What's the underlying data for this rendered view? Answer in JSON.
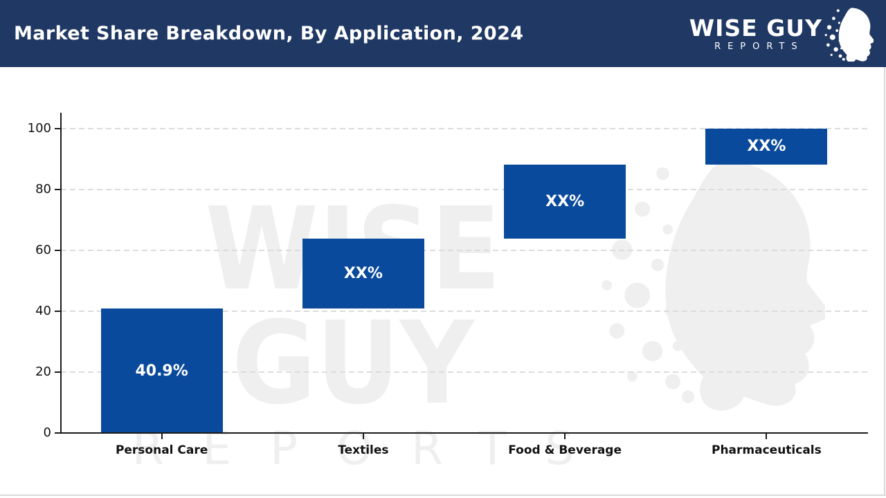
{
  "header": {
    "title": "Market Share Breakdown, By Application, 2024",
    "bg_color": "#1f3864",
    "logo": {
      "wordmark": "WISE GUY",
      "subtitle": "REPORTS"
    }
  },
  "watermark": {
    "line1": "WISE GUY",
    "line2": "REPORTS"
  },
  "chart_data": {
    "type": "bar",
    "subtype": "waterfall",
    "title": "Market Share Breakdown, By Application, 2024",
    "categories": [
      "Personal Care",
      "Textiles",
      "Food & Beverage",
      "Pharmaceuticals"
    ],
    "series": [
      {
        "name": "Market share (%)",
        "segments": [
          {
            "category": "Personal Care",
            "start": 0,
            "end": 40.9,
            "label": "40.9%"
          },
          {
            "category": "Textiles",
            "start": 40.9,
            "end": 63.9,
            "label": "XX%"
          },
          {
            "category": "Food & Beverage",
            "start": 63.9,
            "end": 88.2,
            "label": "XX%"
          },
          {
            "category": "Pharmaceuticals",
            "start": 88.2,
            "end": 100,
            "label": "XX%"
          }
        ]
      }
    ],
    "xlabel": "",
    "ylabel": "",
    "ylim": [
      0,
      100
    ],
    "yticks": [
      0,
      20,
      40,
      60,
      80,
      100
    ],
    "grid": "horizontal-dashed",
    "legend": "none",
    "bar_color": "#0a4a9c",
    "colors": {
      "header_bg": "#1f3864",
      "axis": "#1a1a1a",
      "gridline": "#dcdcdc",
      "watermark": "#efefef",
      "bar_label_text": "#ffffff",
      "category_text": "#111111"
    }
  }
}
